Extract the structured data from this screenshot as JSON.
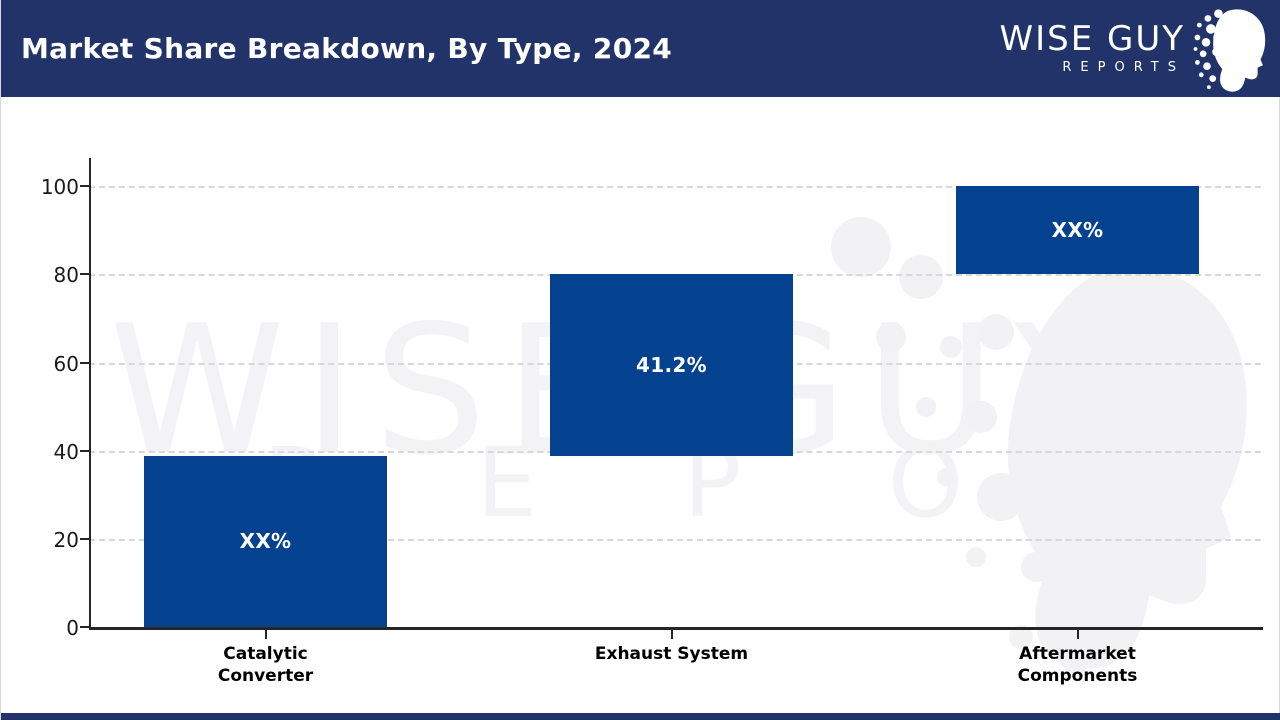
{
  "header": {
    "title": "Market Share Breakdown, By Type, 2024",
    "logo": {
      "line1": "WISE GUY",
      "line2": "REPORTS"
    },
    "bg_color": "#213369"
  },
  "watermark": {
    "line1": "WISE GUY",
    "line2": "R E P O R T S"
  },
  "chart_data": {
    "type": "bar",
    "subtype": "waterfall",
    "title": "Market Share Breakdown, By Type, 2024",
    "categories": [
      "Catalytic\nConverter",
      "Exhaust System",
      "Aftermarket\nComponents"
    ],
    "series": [
      {
        "name": "Market Share",
        "segments": [
          {
            "category": "Catalytic Converter",
            "start": 0,
            "end": 38.8,
            "label": "XX%"
          },
          {
            "category": "Exhaust System",
            "start": 38.8,
            "end": 80.0,
            "label": "41.2%"
          },
          {
            "category": "Aftermarket Components",
            "start": 80.0,
            "end": 100.0,
            "label": "XX%"
          }
        ]
      }
    ],
    "xlabel": "",
    "ylabel": "",
    "ylim": [
      0,
      100
    ],
    "yticks": [
      0,
      20,
      40,
      60,
      80,
      100
    ],
    "grid": "horizontal-dashed",
    "legend": "none",
    "bar_color": "#04418f",
    "value_label_color": "#ffffff"
  }
}
